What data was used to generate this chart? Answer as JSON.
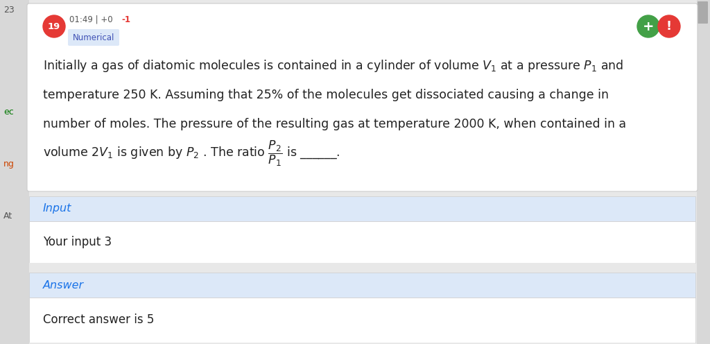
{
  "bg_color": "#e8e8e8",
  "card_bg": "#ffffff",
  "badge_number": "19",
  "badge_color": "#e53935",
  "badge_text_color": "#ffffff",
  "timer_text": "01:49 | +0",
  "minus_text": "-1",
  "minus_color": "#e53935",
  "tag_text": "Numerical",
  "tag_bg": "#dce8f8",
  "tag_text_color": "#3f51b5",
  "plus_btn_color": "#43a047",
  "exclaim_btn_color": "#e53935",
  "line1": "Initially a gas of diatomic molecules is contained in a cylinder of volume $V_1$ at a pressure $P_1$ and",
  "line2": "temperature 250 K. Assuming that 25% of the molecules get dissociated causing a change in",
  "line3": "number of moles. The pressure of the resulting gas at temperature 2000 K, when contained in a",
  "line4": "volume $2V_1$ is given by $P_2$ . The ratio $\\dfrac{P_2}{P_1}$ is ______.",
  "input_section_bg": "#dce8f8",
  "input_label": "Input",
  "input_label_color": "#1a73e8",
  "input_value": "Your input 3",
  "answer_section_bg": "#dce8f8",
  "answer_label": "Answer",
  "answer_label_color": "#1a73e8",
  "answer_value": "Correct answer is 5",
  "sidebar_labels": [
    "23",
    "ec",
    "ng",
    "At"
  ],
  "sidebar_colors": [
    "#555555",
    "#008800",
    "#cc4400",
    "#555555"
  ],
  "scrollbar_bg": "#d0d0d0",
  "scrollbar_thumb": "#aaaaaa"
}
